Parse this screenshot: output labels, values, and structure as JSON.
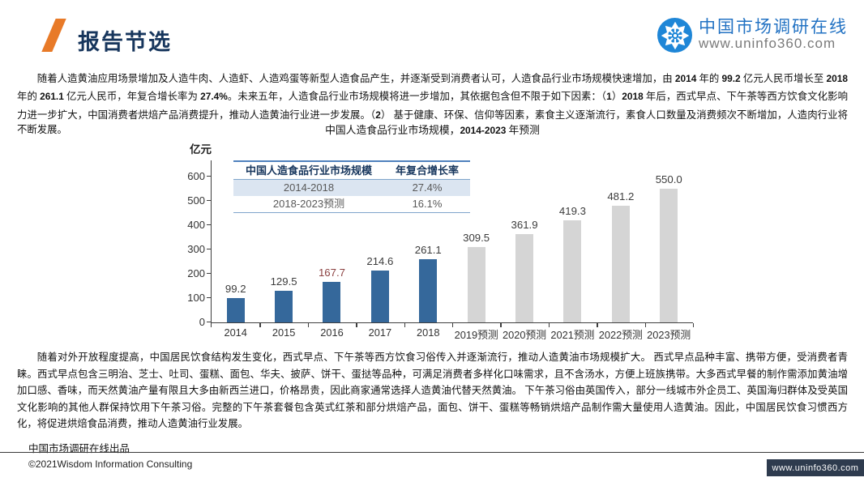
{
  "header": {
    "section_title": "报告节选",
    "logo_name": "中国市场调研在线",
    "logo_url": "www.uninfo360.com",
    "accent_orange": "#E87A28",
    "title_navy": "#17365D",
    "logo_blue": "#1E86D7"
  },
  "paragraphs": {
    "intro_segments": [
      {
        "t": "随着人造黄油应用场景增加及人造牛肉、人造虾、人造鸡蛋等新型人造食品产生，并逐渐受到消费者认可，人造食品行业市场规模快速增加，由 "
      },
      {
        "t": "2014",
        "b": true
      },
      {
        "t": " 年的 "
      },
      {
        "t": "99.2",
        "b": true
      },
      {
        "t": " 亿元人民币增长至 "
      },
      {
        "t": "2018",
        "b": true
      },
      {
        "t": " 年的 "
      },
      {
        "t": "261.1",
        "b": true
      },
      {
        "t": " 亿元人民币，年复合增长率为 "
      },
      {
        "t": "27.4%",
        "b": true
      },
      {
        "t": "。未来五年，人造食品行业市场规模将进一步增加，其依据包含但不限于如下因素：（"
      },
      {
        "t": "1",
        "b": true
      },
      {
        "t": "）"
      },
      {
        "t": "2018",
        "b": true
      },
      {
        "t": " 年后，西式早点、下午茶等西方饮食文化影响力进一步扩大，中国消费者烘焙产品消费提升，推动人造黄油行业进一步发展。（"
      },
      {
        "t": "2",
        "b": true
      },
      {
        "t": "） 基于健康、环保、信仰等因素，素食主义逐渐流行，素食人口数量及消费频次不断增加，人造肉行业将"
      }
    ],
    "intro_tail": "不断发展。",
    "body_text": "随着对外开放程度提高，中国居民饮食结构发生变化，西式早点、下午茶等西方饮食习俗传入并逐渐流行，推动人造黄油市场规模扩大。 西式早点品种丰富、携带方便，受消费者青睐。西式早点包含三明治、芝士、吐司、蛋糕、面包、华夫、披萨、饼干、蛋挞等品种，可满足消费者多样化口味需求，且不含汤水，方便上班族携带。大多西式早餐的制作需添加黄油增加口感、香味，而天然黄油产量有限且大多由新西兰进口，价格昂贵，因此商家通常选择人造黄油代替天然黄油。 下午茶习俗由英国传入，部分一线城市外企员工、英国海归群体及受英国文化影响的其他人群保持饮用下午茶习俗。完整的下午茶套餐包含英式红茶和部分烘焙产品，面包、饼干、蛋糕等畅销烘焙产品制作需大量使用人造黄油。因此，中国居民饮食习惯西方化，将促进烘焙食品消费，推动人造黄油行业发展。"
  },
  "chart_data": {
    "type": "bar",
    "title_segments": [
      {
        "t": "中国人造食品行业市场规模，"
      },
      {
        "t": "2014-2023",
        "b": true
      },
      {
        "t": " 年预测"
      }
    ],
    "title": "中国人造食品行业市场规模，2014-2023 年预测",
    "unit": "亿元",
    "categories": [
      "2014",
      "2015",
      "2016",
      "2017",
      "2018",
      "2019预测",
      "2020预测",
      "2021预测",
      "2022预测",
      "2023预测"
    ],
    "values": [
      99.2,
      129.5,
      167.7,
      214.6,
      261.1,
      309.5,
      361.9,
      419.3,
      481.2,
      550.0
    ],
    "actual_count": 5,
    "bar_colors": {
      "actual": "#35689B",
      "forecast": "#D5D5D5"
    },
    "value_label_colors": {
      "2016": "#8B4040"
    },
    "yticks": [
      0,
      100,
      200,
      300,
      400,
      500,
      600
    ],
    "ylim": [
      0,
      600
    ],
    "grid": false,
    "legend": "none",
    "summary_table": {
      "headers": [
        "中国人造食品行业市场规模",
        "年复合增长率"
      ],
      "rows": [
        [
          "2014-2018",
          "27.4%"
        ],
        [
          "2018-2023预测",
          "16.1%"
        ]
      ]
    }
  },
  "footer": {
    "produced_by": "中国市场调研在线出品",
    "copyright": "©2021Wisdom Information Consulting",
    "site": "www.uninfo360.com"
  }
}
